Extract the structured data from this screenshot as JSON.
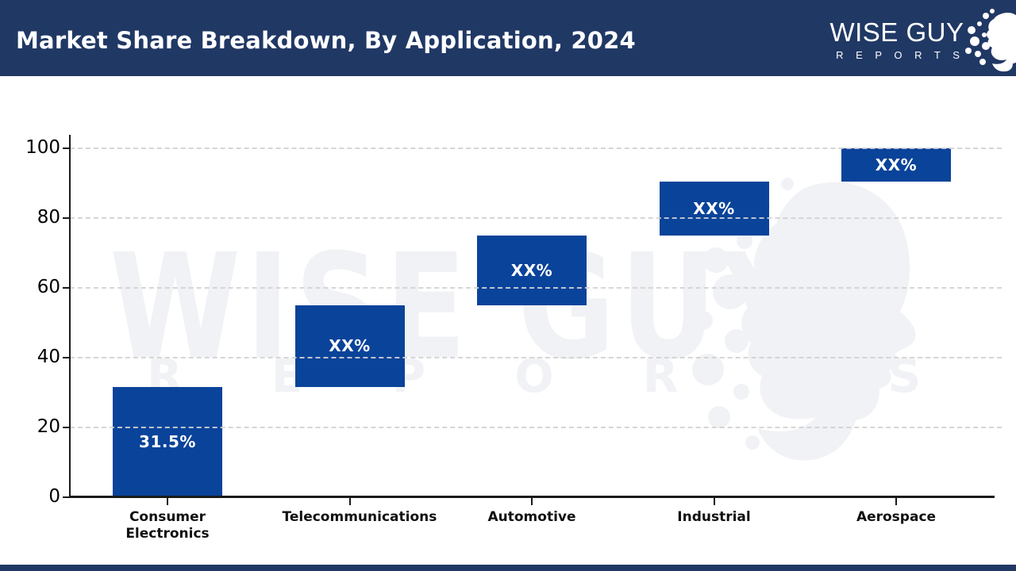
{
  "header": {
    "title": "Market Share Breakdown, By Application, 2024",
    "logo": {
      "wordmark": "WISE GUY",
      "subtext": "R E P O R T S"
    }
  },
  "watermark": {
    "wordmark": "WISE GUY",
    "subtext": "R E P O R T S"
  },
  "footer": {},
  "chart_data": {
    "type": "bar",
    "subtype": "waterfall",
    "title": "Market Share Breakdown, By Application, 2024",
    "categories": [
      "Consumer Electronics",
      "Telecommunications",
      "Automotive",
      "Industrial",
      "Aerospace"
    ],
    "segments": [
      {
        "category": "Consumer Electronics",
        "start": 0,
        "end": 31.5,
        "value_label": "31.5%"
      },
      {
        "category": "Telecommunications",
        "start": 31.5,
        "end": 55,
        "value_label": "XX%"
      },
      {
        "category": "Automotive",
        "start": 55,
        "end": 75,
        "value_label": "XX%"
      },
      {
        "category": "Industrial",
        "start": 75,
        "end": 90.5,
        "value_label": "XX%"
      },
      {
        "category": "Aerospace",
        "start": 90.5,
        "end": 100,
        "value_label": "XX%"
      }
    ],
    "yticks": [
      0,
      20,
      40,
      60,
      80,
      100
    ],
    "ylim": [
      0,
      100
    ],
    "xlabel": "",
    "ylabel": "",
    "grid": true,
    "grid_style": "dashed",
    "legend": "none",
    "bar_color": "#0a439a",
    "header_color": "#203864",
    "value_label_color": "#ffffff"
  }
}
